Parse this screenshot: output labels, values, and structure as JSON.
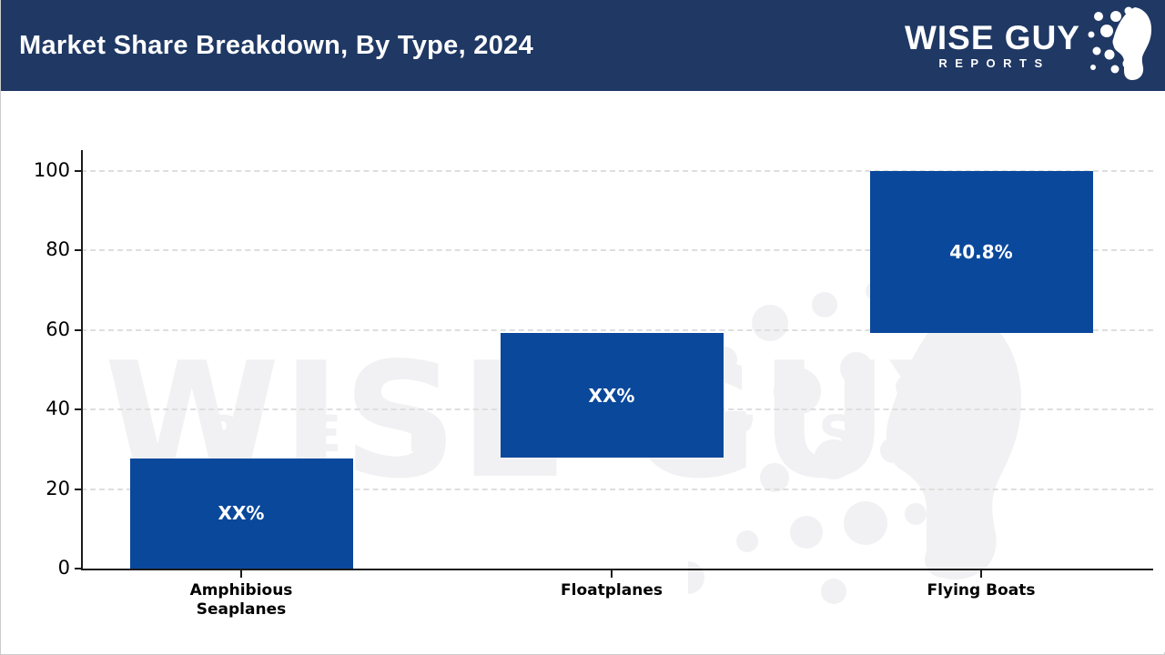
{
  "header": {
    "title": "Market Share Breakdown, By Type, 2024",
    "logo": {
      "line1": "WISE GUY",
      "line2": "REPORTS"
    }
  },
  "watermark": {
    "line1": "WISE GUY",
    "line2": "REPORTS"
  },
  "chart_data": {
    "type": "bar",
    "subtype": "waterfall-floating-bars",
    "title": "Market Share Breakdown, By Type, 2024",
    "categories": [
      "Amphibious Seaplanes",
      "Floatplanes",
      "Flying Boats"
    ],
    "segments": [
      {
        "category": "Amphibious Seaplanes",
        "start": 0,
        "end": 27.8,
        "label": "XX%"
      },
      {
        "category": "Floatplanes",
        "start": 27.8,
        "end": 59.3,
        "label": "XX%"
      },
      {
        "category": "Flying Boats",
        "start": 59.2,
        "end": 100,
        "label": "40.8%"
      }
    ],
    "xlabel": "",
    "ylabel": "",
    "yticks": [
      0,
      20,
      40,
      60,
      80,
      100
    ],
    "ylim": [
      0,
      105
    ],
    "grid": "dashed-horizontal",
    "legend": "none",
    "bar_color": "#0a489b",
    "colors": {
      "header_bg": "#1f3864",
      "bar": "#0a489b",
      "gridline": "#dedede",
      "axis": "#1a1a1a",
      "watermark": "#f1f1f3"
    }
  }
}
